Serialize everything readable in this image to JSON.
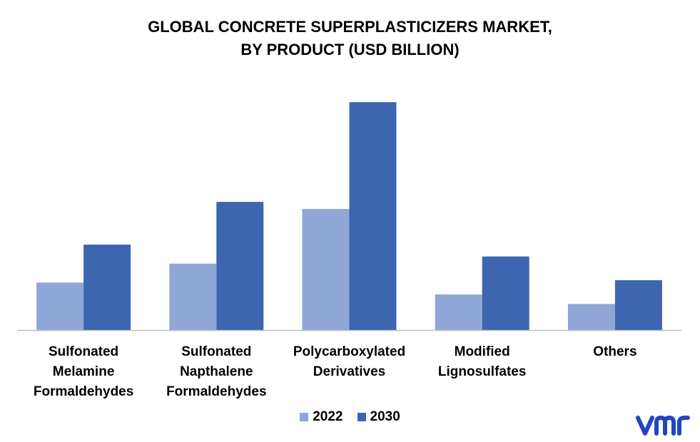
{
  "title": {
    "line1": "GLOBAL CONCRETE SUPERPLASTICIZERS MARKET,",
    "line2": "BY PRODUCT (USD BILLION)"
  },
  "chart_data": {
    "type": "bar",
    "title": "GLOBAL CONCRETE SUPERPLASTICIZERS MARKET, BY PRODUCT (USD BILLION)",
    "categories": [
      "Sulfonated\nMelamine\nFormaldehydes",
      "Sulfonated\nNapthalene\nFormaldehydes",
      "Polycarboxylated\nDerivatives",
      "Modified\nLignosulfates",
      "Others"
    ],
    "series": [
      {
        "name": "2022",
        "values": [
          2.0,
          2.8,
          5.1,
          1.5,
          1.1
        ],
        "color": "#8FA7D7"
      },
      {
        "name": "2030",
        "values": [
          3.6,
          5.4,
          9.6,
          3.1,
          2.1
        ],
        "color": "#3D65B0"
      }
    ],
    "ylim": [
      0,
      10
    ],
    "grid": false,
    "legend": "bottom-center",
    "xlabel": "",
    "ylabel": ""
  },
  "logo": {
    "text": "vmr",
    "color": "#2145C6"
  }
}
